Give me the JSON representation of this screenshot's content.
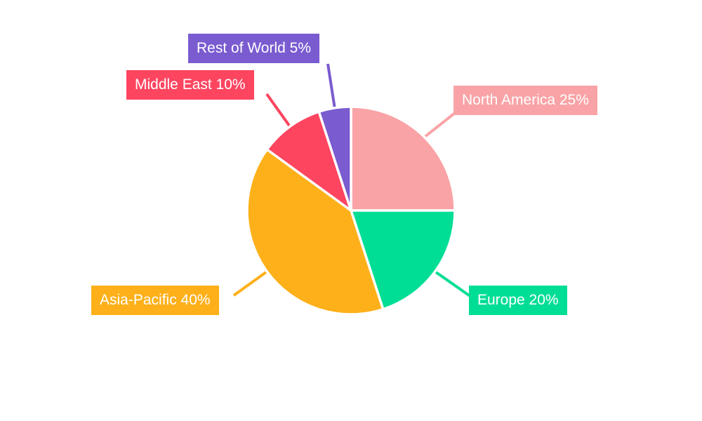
{
  "chart_data": {
    "type": "pie",
    "title": "",
    "background": "#FFFFFF",
    "start_angle_deg": 0,
    "direction": "clockwise",
    "label_text_color": "#FFFFFF",
    "separator_color": "#FFFFFF",
    "slices": [
      {
        "label": "North America",
        "value": 25,
        "display": "North America 25%",
        "color": "#F9A3A6"
      },
      {
        "label": "Europe",
        "value": 20,
        "display": "Europe 20%",
        "color": "#00DE96"
      },
      {
        "label": "Asia-Pacific",
        "value": 40,
        "display": "Asia-Pacific 40%",
        "color": "#FDB019"
      },
      {
        "label": "Middle East",
        "value": 10,
        "display": "Middle East 10%",
        "color": "#FD4560"
      },
      {
        "label": "Rest of World",
        "value": 5,
        "display": "Rest of World 5%",
        "color": "#7A5BD0"
      }
    ]
  }
}
